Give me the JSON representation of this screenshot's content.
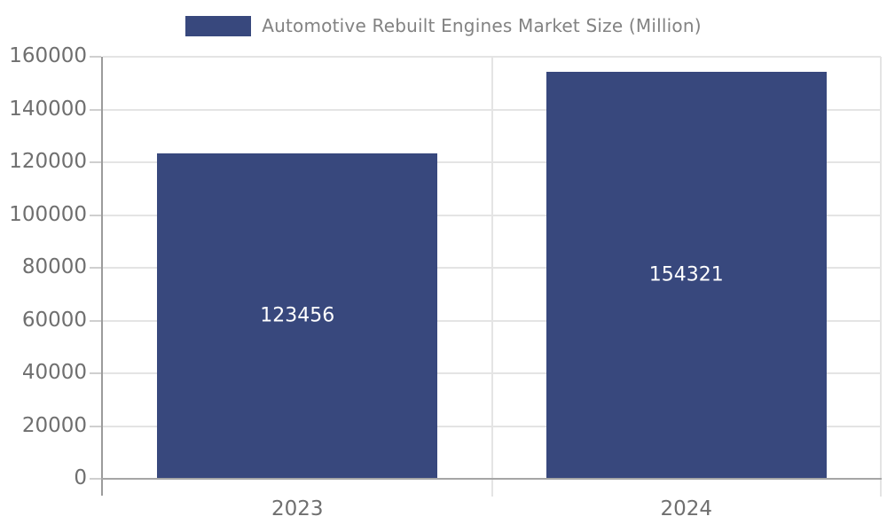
{
  "chart_data": {
    "type": "bar",
    "title": "Automotive Rebuilt Engines Market Size (Million)",
    "categories": [
      "2023",
      "2024"
    ],
    "values": [
      123456,
      154321
    ],
    "value_labels": [
      "123456",
      "154321"
    ],
    "yticks": [
      0,
      20000,
      40000,
      60000,
      80000,
      100000,
      120000,
      140000,
      160000
    ],
    "ylim": [
      0,
      160000
    ],
    "xlabel": "",
    "ylabel": "",
    "grid": "on",
    "legend_position": "top-center",
    "colors": {
      "bar": "#38487D",
      "value_label": "#FFFFFF",
      "grid_line": "#E4E4E4",
      "axis_line": "#A6A6A6",
      "y_axis_line": "#9B9B9B",
      "tick_dash": "#CFCFCF",
      "tick_label": "#6F6F6F",
      "legend_label": "#828282",
      "background": "#FFFFFF"
    }
  }
}
